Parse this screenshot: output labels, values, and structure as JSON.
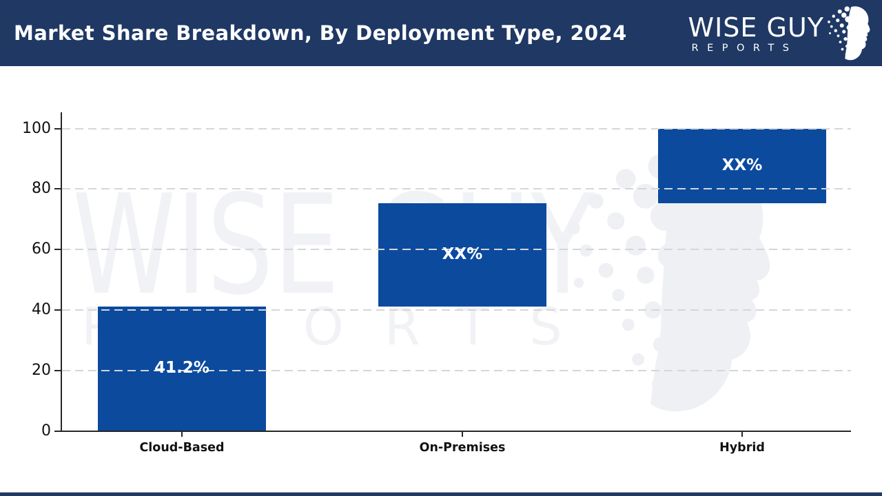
{
  "header": {
    "title": "Market Share Breakdown, By Deployment Type, 2024",
    "logo": {
      "line1": "WISE GUY",
      "line2": "REPORTS"
    }
  },
  "watermark": {
    "line1": "WISE GUY",
    "line2": "REPORTS"
  },
  "chart_data": {
    "type": "bar",
    "subtype": "waterfall-segments",
    "title": "Market Share Breakdown, By Deployment Type, 2024",
    "categories": [
      "Cloud-Based",
      "On-Premises",
      "Hybrid"
    ],
    "segments": [
      {
        "category": "Cloud-Based",
        "start": 0,
        "end": 41.2,
        "label": "41.2%"
      },
      {
        "category": "On-Premises",
        "start": 41.2,
        "end": 75.4,
        "label": "XX%"
      },
      {
        "category": "Hybrid",
        "start": 75.4,
        "end": 100,
        "label": "XX%"
      }
    ],
    "xlabel": "",
    "ylabel": "",
    "ylim": [
      0,
      100
    ],
    "yticks": [
      0,
      20,
      40,
      60,
      80,
      100
    ],
    "grid": "horizontal-dashed",
    "legend": "none",
    "bar_color": "#0c4a9e",
    "bar_label_color": "#ffffff"
  },
  "colors": {
    "header_bg": "#1f3864",
    "footer_bg": "#1f3864",
    "bar": "#0c4a9e",
    "grid": "#d4d6d9",
    "axis": "#262626",
    "watermark": "#f1f2f5",
    "tick_text": "#111111",
    "title_text": "#ffffff"
  }
}
